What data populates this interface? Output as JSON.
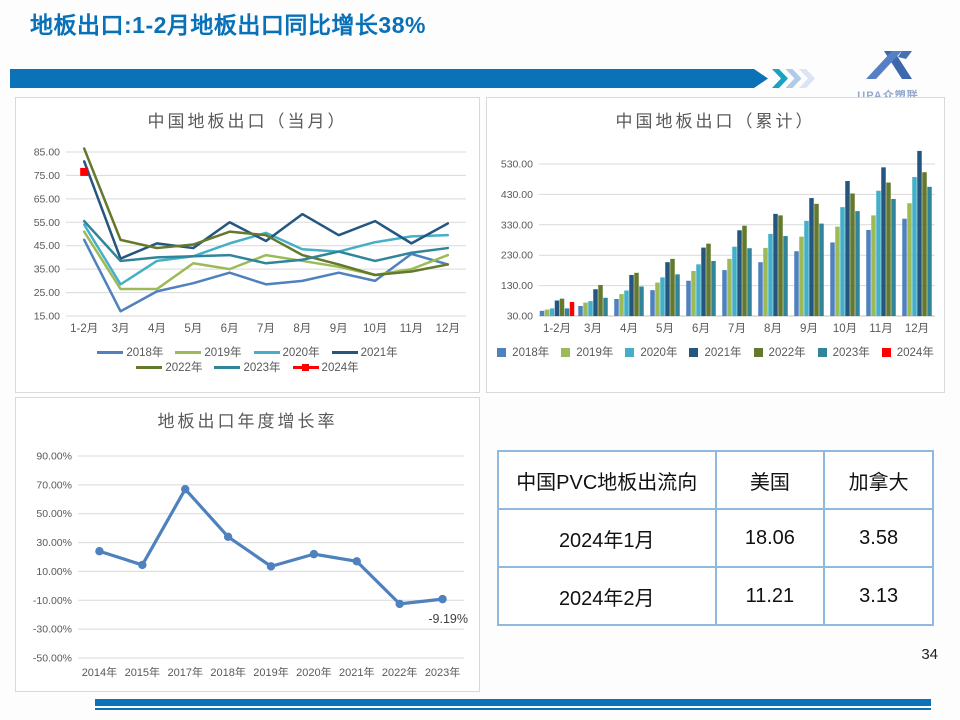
{
  "page": {
    "title": "地板出口:1-2月地板出口同比增长38%",
    "page_number": "34",
    "logo_text": "UPA众塑联",
    "accent_color": "#0B72B8"
  },
  "chart_data": [
    {
      "id": "monthly",
      "type": "line",
      "title": "中国地板出口（当月）",
      "categories": [
        "1-2月",
        "3月",
        "4月",
        "5月",
        "6月",
        "7月",
        "8月",
        "9月",
        "10月",
        "11月",
        "12月"
      ],
      "ylim": [
        15,
        85
      ],
      "yticks": [
        15,
        25,
        35,
        45,
        55,
        65,
        75,
        85
      ],
      "grid": true,
      "legend_position": "bottom",
      "series": [
        {
          "name": "2018年",
          "color": "#4E81BD",
          "values": [
            47.5,
            17,
            25.5,
            29,
            33.5,
            28.5,
            30,
            33.5,
            30,
            41.5,
            37
          ]
        },
        {
          "name": "2019年",
          "color": "#9CBB58",
          "values": [
            51,
            26.5,
            26.5,
            37.5,
            35,
            41,
            38.5,
            36,
            32.5,
            35,
            41
          ]
        },
        {
          "name": "2020年",
          "color": "#45AFC8",
          "values": [
            54,
            28.5,
            38.5,
            40.5,
            46,
            50.5,
            43.5,
            42.5,
            46.5,
            49,
            49.5
          ]
        },
        {
          "name": "2021年",
          "color": "#24567F",
          "values": [
            81,
            39.5,
            46,
            44,
            55,
            47,
            58.5,
            49.5,
            55.5,
            46,
            54.5
          ]
        },
        {
          "name": "2022年",
          "color": "#62792E",
          "values": [
            86.5,
            47.5,
            44,
            45.5,
            51,
            49.5,
            41,
            37,
            32.5,
            34,
            37
          ]
        },
        {
          "name": "2023年",
          "color": "#31859B",
          "values": [
            55.5,
            38.5,
            40,
            40.5,
            41,
            37.5,
            39,
            42.5,
            38.5,
            42,
            44
          ]
        },
        {
          "name": "2024年",
          "color": "#FF0000",
          "marker": "square",
          "values": [
            76.5
          ]
        }
      ]
    },
    {
      "id": "cumulative",
      "type": "bar",
      "title": "中国地板出口（累计）",
      "categories": [
        "1-2月",
        "3月",
        "4月",
        "5月",
        "6月",
        "7月",
        "8月",
        "9月",
        "10月",
        "11月",
        "12月"
      ],
      "ylim": [
        30,
        580
      ],
      "yticks": [
        30,
        130,
        230,
        330,
        430,
        530
      ],
      "grid": true,
      "legend_position": "bottom",
      "series": [
        {
          "name": "2018年",
          "color": "#4E81BD",
          "values": [
            47,
            63,
            86,
            115,
            146,
            181,
            207,
            243,
            272,
            313,
            350
          ]
        },
        {
          "name": "2019年",
          "color": "#9CBB58",
          "values": [
            51,
            74,
            102,
            140,
            178,
            218,
            254,
            291,
            324,
            361,
            401
          ]
        },
        {
          "name": "2020年",
          "color": "#45AFC8",
          "values": [
            55,
            79,
            114,
            157,
            200,
            258,
            300,
            343,
            388,
            442,
            487
          ]
        },
        {
          "name": "2021年",
          "color": "#24567F",
          "values": [
            81,
            118,
            165,
            207,
            255,
            312,
            366,
            418,
            474,
            519,
            573
          ]
        },
        {
          "name": "2022年",
          "color": "#62792E",
          "values": [
            87,
            132,
            172,
            218,
            268,
            327,
            361,
            399,
            433,
            469,
            503
          ]
        },
        {
          "name": "2023年",
          "color": "#31859B",
          "values": [
            55,
            90,
            127,
            167,
            211,
            253,
            293,
            334,
            375,
            415,
            455
          ]
        },
        {
          "name": "2024年",
          "color": "#FF0000",
          "values": [
            76
          ]
        }
      ]
    },
    {
      "id": "growth",
      "type": "line",
      "title": "地板出口年度增长率",
      "categories": [
        "2014年",
        "2015年",
        "2017年",
        "2018年",
        "2019年",
        "2020年",
        "2021年",
        "2022年",
        "2023年"
      ],
      "ylim": [
        -50,
        90
      ],
      "yticks": [
        90,
        70,
        50,
        30,
        10,
        -10,
        -30,
        -50
      ],
      "grid": true,
      "line_color": "#4E81BD",
      "values": [
        24,
        14.5,
        67,
        34,
        13.5,
        22,
        17,
        -12.5,
        -9.19
      ],
      "annotation": {
        "text": "-9.19%",
        "index": 8
      }
    },
    {
      "id": "flow-table",
      "type": "table",
      "headers": [
        "中国PVC地板出流向",
        "美国",
        "加拿大"
      ],
      "rows": [
        [
          "2024年1月",
          "18.06",
          "3.58"
        ],
        [
          "2024年2月",
          "11.21",
          "3.13"
        ]
      ]
    }
  ]
}
